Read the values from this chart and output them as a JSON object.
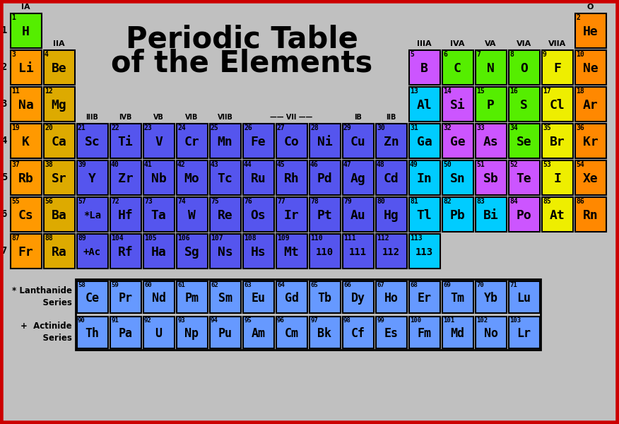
{
  "title_line1": "Periodic Table",
  "title_line2": "of the Elements",
  "bg_color": "#c0c0c0",
  "border_color": "#cc0000",
  "colors": {
    "alkali_metal": "#ff9900",
    "alkaline_earth": "#ddaa00",
    "transition_metal": "#5555ee",
    "other_metal": "#00ccff",
    "metalloid": "#cc55ff",
    "nonmetal": "#55ee00",
    "halogen": "#eeee00",
    "noble_gas": "#ff8800",
    "lanthanide": "#6699ff",
    "actinide": "#6699ff"
  },
  "elements": [
    {
      "num": 1,
      "sym": "H",
      "col": 0,
      "row": 1,
      "color": "#55ee00"
    },
    {
      "num": 2,
      "sym": "He",
      "col": 17,
      "row": 1,
      "color": "#ff8800"
    },
    {
      "num": 3,
      "sym": "Li",
      "col": 0,
      "row": 2,
      "color": "#ff9900"
    },
    {
      "num": 4,
      "sym": "Be",
      "col": 1,
      "row": 2,
      "color": "#ddaa00"
    },
    {
      "num": 5,
      "sym": "B",
      "col": 12,
      "row": 2,
      "color": "#cc55ff"
    },
    {
      "num": 6,
      "sym": "C",
      "col": 13,
      "row": 2,
      "color": "#55ee00"
    },
    {
      "num": 7,
      "sym": "N",
      "col": 14,
      "row": 2,
      "color": "#55ee00"
    },
    {
      "num": 8,
      "sym": "O",
      "col": 15,
      "row": 2,
      "color": "#55ee00"
    },
    {
      "num": 9,
      "sym": "F",
      "col": 16,
      "row": 2,
      "color": "#eeee00"
    },
    {
      "num": 10,
      "sym": "Ne",
      "col": 17,
      "row": 2,
      "color": "#ff8800"
    },
    {
      "num": 11,
      "sym": "Na",
      "col": 0,
      "row": 3,
      "color": "#ff9900"
    },
    {
      "num": 12,
      "sym": "Mg",
      "col": 1,
      "row": 3,
      "color": "#ddaa00"
    },
    {
      "num": 13,
      "sym": "Al",
      "col": 12,
      "row": 3,
      "color": "#00ccff"
    },
    {
      "num": 14,
      "sym": "Si",
      "col": 13,
      "row": 3,
      "color": "#cc55ff"
    },
    {
      "num": 15,
      "sym": "P",
      "col": 14,
      "row": 3,
      "color": "#55ee00"
    },
    {
      "num": 16,
      "sym": "S",
      "col": 15,
      "row": 3,
      "color": "#55ee00"
    },
    {
      "num": 17,
      "sym": "Cl",
      "col": 16,
      "row": 3,
      "color": "#eeee00"
    },
    {
      "num": 18,
      "sym": "Ar",
      "col": 17,
      "row": 3,
      "color": "#ff8800"
    },
    {
      "num": 19,
      "sym": "K",
      "col": 0,
      "row": 4,
      "color": "#ff9900"
    },
    {
      "num": 20,
      "sym": "Ca",
      "col": 1,
      "row": 4,
      "color": "#ddaa00"
    },
    {
      "num": 21,
      "sym": "Sc",
      "col": 2,
      "row": 4,
      "color": "#5555ee"
    },
    {
      "num": 22,
      "sym": "Ti",
      "col": 3,
      "row": 4,
      "color": "#5555ee"
    },
    {
      "num": 23,
      "sym": "V",
      "col": 4,
      "row": 4,
      "color": "#5555ee"
    },
    {
      "num": 24,
      "sym": "Cr",
      "col": 5,
      "row": 4,
      "color": "#5555ee"
    },
    {
      "num": 25,
      "sym": "Mn",
      "col": 6,
      "row": 4,
      "color": "#5555ee"
    },
    {
      "num": 26,
      "sym": "Fe",
      "col": 7,
      "row": 4,
      "color": "#5555ee"
    },
    {
      "num": 27,
      "sym": "Co",
      "col": 8,
      "row": 4,
      "color": "#5555ee"
    },
    {
      "num": 28,
      "sym": "Ni",
      "col": 9,
      "row": 4,
      "color": "#5555ee"
    },
    {
      "num": 29,
      "sym": "Cu",
      "col": 10,
      "row": 4,
      "color": "#5555ee"
    },
    {
      "num": 30,
      "sym": "Zn",
      "col": 11,
      "row": 4,
      "color": "#5555ee"
    },
    {
      "num": 31,
      "sym": "Ga",
      "col": 12,
      "row": 4,
      "color": "#00ccff"
    },
    {
      "num": 32,
      "sym": "Ge",
      "col": 13,
      "row": 4,
      "color": "#cc55ff"
    },
    {
      "num": 33,
      "sym": "As",
      "col": 14,
      "row": 4,
      "color": "#cc55ff"
    },
    {
      "num": 34,
      "sym": "Se",
      "col": 15,
      "row": 4,
      "color": "#55ee00"
    },
    {
      "num": 35,
      "sym": "Br",
      "col": 16,
      "row": 4,
      "color": "#eeee00"
    },
    {
      "num": 36,
      "sym": "Kr",
      "col": 17,
      "row": 4,
      "color": "#ff8800"
    },
    {
      "num": 37,
      "sym": "Rb",
      "col": 0,
      "row": 5,
      "color": "#ff9900"
    },
    {
      "num": 38,
      "sym": "Sr",
      "col": 1,
      "row": 5,
      "color": "#ddaa00"
    },
    {
      "num": 39,
      "sym": "Y",
      "col": 2,
      "row": 5,
      "color": "#5555ee"
    },
    {
      "num": 40,
      "sym": "Zr",
      "col": 3,
      "row": 5,
      "color": "#5555ee"
    },
    {
      "num": 41,
      "sym": "Nb",
      "col": 4,
      "row": 5,
      "color": "#5555ee"
    },
    {
      "num": 42,
      "sym": "Mo",
      "col": 5,
      "row": 5,
      "color": "#5555ee"
    },
    {
      "num": 43,
      "sym": "Tc",
      "col": 6,
      "row": 5,
      "color": "#5555ee"
    },
    {
      "num": 44,
      "sym": "Ru",
      "col": 7,
      "row": 5,
      "color": "#5555ee"
    },
    {
      "num": 45,
      "sym": "Rh",
      "col": 8,
      "row": 5,
      "color": "#5555ee"
    },
    {
      "num": 46,
      "sym": "Pd",
      "col": 9,
      "row": 5,
      "color": "#5555ee"
    },
    {
      "num": 47,
      "sym": "Ag",
      "col": 10,
      "row": 5,
      "color": "#5555ee"
    },
    {
      "num": 48,
      "sym": "Cd",
      "col": 11,
      "row": 5,
      "color": "#5555ee"
    },
    {
      "num": 49,
      "sym": "In",
      "col": 12,
      "row": 5,
      "color": "#00ccff"
    },
    {
      "num": 50,
      "sym": "Sn",
      "col": 13,
      "row": 5,
      "color": "#00ccff"
    },
    {
      "num": 51,
      "sym": "Sb",
      "col": 14,
      "row": 5,
      "color": "#cc55ff"
    },
    {
      "num": 52,
      "sym": "Te",
      "col": 15,
      "row": 5,
      "color": "#cc55ff"
    },
    {
      "num": 53,
      "sym": "I",
      "col": 16,
      "row": 5,
      "color": "#eeee00"
    },
    {
      "num": 54,
      "sym": "Xe",
      "col": 17,
      "row": 5,
      "color": "#ff8800"
    },
    {
      "num": 55,
      "sym": "Cs",
      "col": 0,
      "row": 6,
      "color": "#ff9900"
    },
    {
      "num": 56,
      "sym": "Ba",
      "col": 1,
      "row": 6,
      "color": "#ddaa00"
    },
    {
      "num": 57,
      "sym": "*La",
      "col": 2,
      "row": 6,
      "color": "#5555ee"
    },
    {
      "num": 72,
      "sym": "Hf",
      "col": 3,
      "row": 6,
      "color": "#5555ee"
    },
    {
      "num": 73,
      "sym": "Ta",
      "col": 4,
      "row": 6,
      "color": "#5555ee"
    },
    {
      "num": 74,
      "sym": "W",
      "col": 5,
      "row": 6,
      "color": "#5555ee"
    },
    {
      "num": 75,
      "sym": "Re",
      "col": 6,
      "row": 6,
      "color": "#5555ee"
    },
    {
      "num": 76,
      "sym": "Os",
      "col": 7,
      "row": 6,
      "color": "#5555ee"
    },
    {
      "num": 77,
      "sym": "Ir",
      "col": 8,
      "row": 6,
      "color": "#5555ee"
    },
    {
      "num": 78,
      "sym": "Pt",
      "col": 9,
      "row": 6,
      "color": "#5555ee"
    },
    {
      "num": 79,
      "sym": "Au",
      "col": 10,
      "row": 6,
      "color": "#5555ee"
    },
    {
      "num": 80,
      "sym": "Hg",
      "col": 11,
      "row": 6,
      "color": "#5555ee"
    },
    {
      "num": 81,
      "sym": "Tl",
      "col": 12,
      "row": 6,
      "color": "#00ccff"
    },
    {
      "num": 82,
      "sym": "Pb",
      "col": 13,
      "row": 6,
      "color": "#00ccff"
    },
    {
      "num": 83,
      "sym": "Bi",
      "col": 14,
      "row": 6,
      "color": "#00ccff"
    },
    {
      "num": 84,
      "sym": "Po",
      "col": 15,
      "row": 6,
      "color": "#cc55ff"
    },
    {
      "num": 85,
      "sym": "At",
      "col": 16,
      "row": 6,
      "color": "#eeee00"
    },
    {
      "num": 86,
      "sym": "Rn",
      "col": 17,
      "row": 6,
      "color": "#ff8800"
    },
    {
      "num": 87,
      "sym": "Fr",
      "col": 0,
      "row": 7,
      "color": "#ff9900"
    },
    {
      "num": 88,
      "sym": "Ra",
      "col": 1,
      "row": 7,
      "color": "#ddaa00"
    },
    {
      "num": 89,
      "sym": "+Ac",
      "col": 2,
      "row": 7,
      "color": "#5555ee"
    },
    {
      "num": 104,
      "sym": "Rf",
      "col": 3,
      "row": 7,
      "color": "#5555ee"
    },
    {
      "num": 105,
      "sym": "Ha",
      "col": 4,
      "row": 7,
      "color": "#5555ee"
    },
    {
      "num": 106,
      "sym": "Sg",
      "col": 5,
      "row": 7,
      "color": "#5555ee"
    },
    {
      "num": 107,
      "sym": "Ns",
      "col": 6,
      "row": 7,
      "color": "#5555ee"
    },
    {
      "num": 108,
      "sym": "Hs",
      "col": 7,
      "row": 7,
      "color": "#5555ee"
    },
    {
      "num": 109,
      "sym": "Mt",
      "col": 8,
      "row": 7,
      "color": "#5555ee"
    },
    {
      "num": 110,
      "sym": "110",
      "col": 9,
      "row": 7,
      "color": "#5555ee"
    },
    {
      "num": 111,
      "sym": "111",
      "col": 10,
      "row": 7,
      "color": "#5555ee"
    },
    {
      "num": 112,
      "sym": "112",
      "col": 11,
      "row": 7,
      "color": "#5555ee"
    },
    {
      "num": 113,
      "sym": "113",
      "col": 12,
      "row": 7,
      "color": "#00ccff"
    }
  ],
  "lanthanides": [
    {
      "num": 58,
      "sym": "Ce"
    },
    {
      "num": 59,
      "sym": "Pr"
    },
    {
      "num": 60,
      "sym": "Nd"
    },
    {
      "num": 61,
      "sym": "Pm"
    },
    {
      "num": 62,
      "sym": "Sm"
    },
    {
      "num": 63,
      "sym": "Eu"
    },
    {
      "num": 64,
      "sym": "Gd"
    },
    {
      "num": 65,
      "sym": "Tb"
    },
    {
      "num": 66,
      "sym": "Dy"
    },
    {
      "num": 67,
      "sym": "Ho"
    },
    {
      "num": 68,
      "sym": "Er"
    },
    {
      "num": 69,
      "sym": "Tm"
    },
    {
      "num": 70,
      "sym": "Yb"
    },
    {
      "num": 71,
      "sym": "Lu"
    }
  ],
  "actinides": [
    {
      "num": 90,
      "sym": "Th"
    },
    {
      "num": 91,
      "sym": "Pa"
    },
    {
      "num": 92,
      "sym": "U"
    },
    {
      "num": 93,
      "sym": "Np"
    },
    {
      "num": 94,
      "sym": "Pu"
    },
    {
      "num": 95,
      "sym": "Am"
    },
    {
      "num": 96,
      "sym": "Cm"
    },
    {
      "num": 97,
      "sym": "Bk"
    },
    {
      "num": 98,
      "sym": "Cf"
    },
    {
      "num": 99,
      "sym": "Es"
    },
    {
      "num": 100,
      "sym": "Fm"
    },
    {
      "num": 101,
      "sym": "Md"
    },
    {
      "num": 102,
      "sym": "No"
    },
    {
      "num": 103,
      "sym": "Lr"
    }
  ],
  "row_labels": [
    "1",
    "2",
    "3",
    "4",
    "5",
    "6",
    "7"
  ],
  "group_row1": [
    "IA",
    "O"
  ],
  "group_row2": [
    "IIA",
    "IIIA",
    "IVA",
    "VA",
    "VIA",
    "VIIA"
  ],
  "group_row4": [
    "IIIB",
    "IVB",
    "VB",
    "VIB",
    "VIIB",
    "IB",
    "IIB"
  ]
}
